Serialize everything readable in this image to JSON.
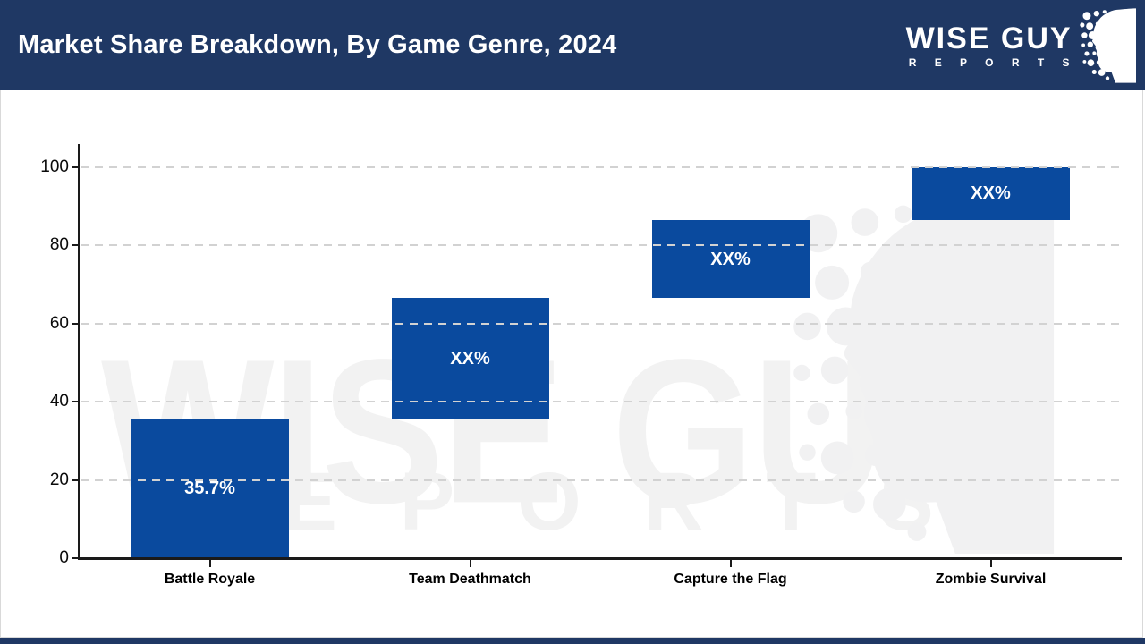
{
  "header": {
    "title": "Market Share Breakdown, By Game Genre, 2024",
    "logo": {
      "line1": "WISE GUY",
      "line2": "R E P O R T S"
    }
  },
  "watermark": {
    "line1": "WISE GUY",
    "line2": "REPORTS"
  },
  "colors": {
    "header_bg": "#1f3864",
    "bar": "#0a4a9e",
    "grid": "#d2d2d2",
    "axis": "#1a1a1a",
    "bar_label": "#ffffff",
    "watermark": "#f2f2f2"
  },
  "chart_data": {
    "type": "waterfall",
    "title": "Market Share Breakdown, By Game Genre, 2024",
    "categories": [
      "Battle Royale",
      "Team Deathmatch",
      "Capture the Flag",
      "Zombie Survival"
    ],
    "segments": [
      {
        "category": "Battle Royale",
        "start": 0,
        "end": 35.7,
        "value": 35.7,
        "value_label": "35.7%"
      },
      {
        "category": "Team Deathmatch",
        "start": 35.7,
        "end": 66.5,
        "value": 30.8,
        "value_label": "XX%"
      },
      {
        "category": "Capture the Flag",
        "start": 66.5,
        "end": 86.5,
        "value": 20.0,
        "value_label": "XX%"
      },
      {
        "category": "Zombie Survival",
        "start": 86.5,
        "end": 100,
        "value": 13.5,
        "value_label": "XX%"
      }
    ],
    "xlabel": "",
    "ylabel": "",
    "yticks": [
      0,
      20,
      40,
      60,
      80,
      100
    ],
    "ylim": [
      0,
      106
    ],
    "grid": "dashed-horizontal, drawn above bars",
    "legend": "none",
    "bar_color": "#0a4a9e"
  }
}
